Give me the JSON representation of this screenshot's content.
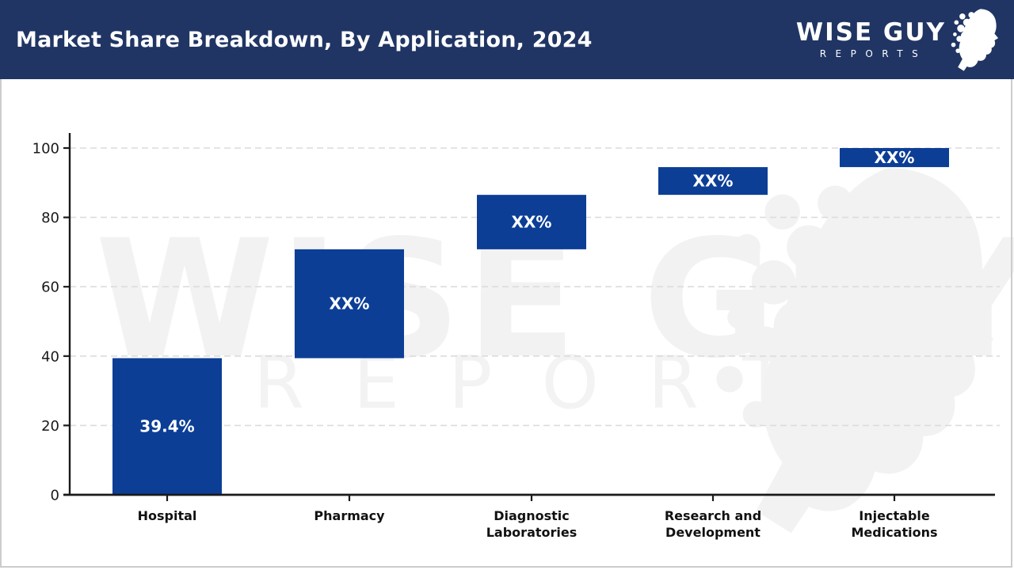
{
  "header": {
    "title": "Market Share Breakdown, By Application, 2024",
    "background": "#203564",
    "logo": {
      "line1": "WISE GUY",
      "line2": "REPORTS"
    }
  },
  "watermark": {
    "line1": "WISE GUY",
    "line2": "REPORTS"
  },
  "chart_data": {
    "type": "bar",
    "subtype": "waterfall",
    "title": "Market Share Breakdown, By Application, 2024",
    "categories": [
      "Hospital",
      "Pharmacy",
      "Diagnostic Laboratories",
      "Research and Development",
      "Injectable Medications"
    ],
    "category_lines": [
      [
        "Hospital"
      ],
      [
        "Pharmacy"
      ],
      [
        "Diagnostic",
        "Laboratories"
      ],
      [
        "Research and",
        "Development"
      ],
      [
        "Injectable",
        "Medications"
      ]
    ],
    "segments": [
      {
        "category": "Hospital",
        "start": 0,
        "end": 39.4,
        "label": "39.4%",
        "masked": false
      },
      {
        "category": "Pharmacy",
        "start": 39.4,
        "end": 70.8,
        "label": "XX%",
        "masked": true
      },
      {
        "category": "Diagnostic Laboratories",
        "start": 70.8,
        "end": 86.5,
        "label": "XX%",
        "masked": true
      },
      {
        "category": "Research and Development",
        "start": 86.5,
        "end": 94.5,
        "label": "XX%",
        "masked": true
      },
      {
        "category": "Injectable Medications",
        "start": 94.5,
        "end": 100,
        "label": "XX%",
        "masked": true
      }
    ],
    "ylim": [
      0,
      100
    ],
    "yticks": [
      0,
      20,
      40,
      60,
      80,
      100
    ],
    "xlabel": "",
    "ylabel": "",
    "grid": "horizontal-dashed",
    "legend": "none",
    "bar_color": "#0c3e96",
    "bar_label_color": "#ffffff",
    "gridline_color": "#dcdcdc",
    "axis_color": "#1a1a1a"
  }
}
